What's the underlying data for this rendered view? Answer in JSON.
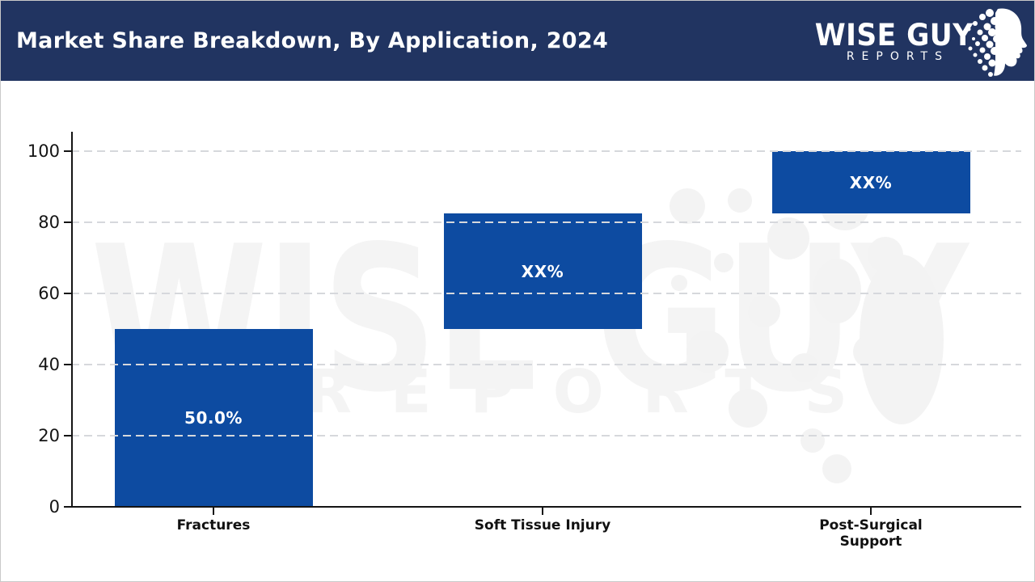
{
  "header": {
    "title": "Market Share Breakdown, By Application, 2024",
    "logo": {
      "wordmark": "WISE GUY",
      "subtext": "REPORTS",
      "face_icon": "dotted-head-profile"
    }
  },
  "watermark": {
    "line1": "WISE GUY",
    "line2": "REPORTS"
  },
  "colors": {
    "header_background": "#213461",
    "bar_fill": "#0d4ba1",
    "bar_label_text": "#ffffff",
    "gridline": "#d6d8dc",
    "axis": "#141414",
    "watermark_text": "#f4f4f4",
    "page_border": "#c9c9c9",
    "background": "#ffffff"
  },
  "chart_data": {
    "type": "bar",
    "variant": "stacked-progression (each bar starts where the previous ends)",
    "title": "Market Share Breakdown, By Application, 2024",
    "xlabel": "",
    "ylabel": "",
    "legend": "none",
    "grid": "horizontal dashed gridlines drawn over bars",
    "ylim": [
      0,
      105
    ],
    "yticks": [
      0,
      20,
      40,
      60,
      80,
      100
    ],
    "categories": [
      "Fractures",
      "Soft Tissue Injury",
      "Post-Surgical Support"
    ],
    "series": [
      {
        "category": "Fractures",
        "start": 0,
        "end": 50,
        "segment_value": 50.0,
        "label": "50.0%"
      },
      {
        "category": "Soft Tissue Injury",
        "start": 50,
        "end": 82.5,
        "segment_value": 32.5,
        "label": "XX%"
      },
      {
        "category": "Post-Surgical Support",
        "start": 82.5,
        "end": 100,
        "segment_value": 17.5,
        "label": "XX%"
      }
    ]
  }
}
